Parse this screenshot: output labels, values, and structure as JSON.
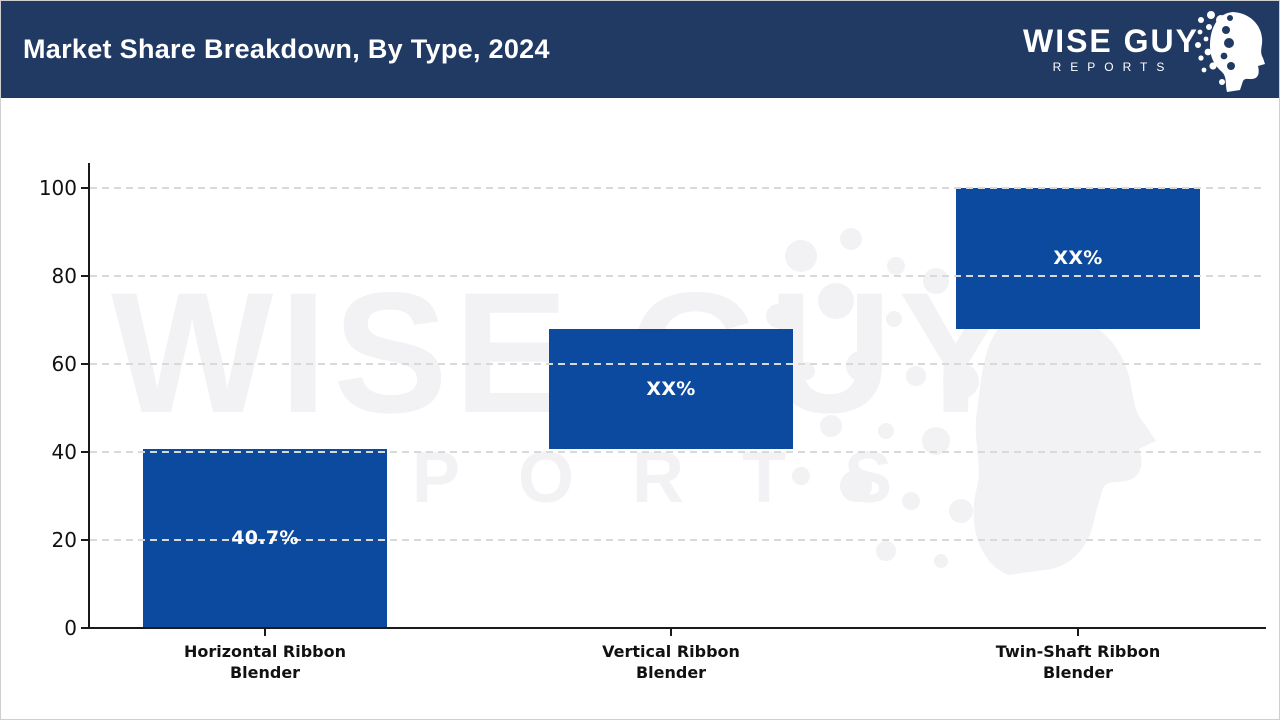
{
  "header": {
    "title": "Market Share Breakdown, By Type, 2024",
    "bg_color": "#203a64",
    "logo": {
      "line1": "WISE GUY",
      "line2": "REPORTS"
    }
  },
  "watermark": {
    "line1": "WISE GUY",
    "line2": "REPORTS"
  },
  "chart_data": {
    "type": "bar",
    "subtype": "waterfall",
    "title": "Market Share Breakdown, By Type, 2024",
    "categories": [
      {
        "line1": "Horizontal Ribbon",
        "line2": "Blender",
        "full": "Horizontal Ribbon Blender"
      },
      {
        "line1": "Vertical Ribbon",
        "line2": "Blender",
        "full": "Vertical Ribbon Blender"
      },
      {
        "line1": "Twin-Shaft Ribbon",
        "line2": "Blender",
        "full": "Twin-Shaft Ribbon Blender"
      }
    ],
    "segments": [
      {
        "category": "Horizontal Ribbon Blender",
        "start": 0,
        "end": 40.7,
        "label": "40.7%"
      },
      {
        "category": "Vertical Ribbon Blender",
        "start": 40.7,
        "end": 68,
        "label": "XX%"
      },
      {
        "category": "Twin-Shaft Ribbon Blender",
        "start": 68,
        "end": 100,
        "label": "XX%"
      }
    ],
    "ylim": [
      0,
      100
    ],
    "yticks": [
      0,
      20,
      40,
      60,
      80,
      100
    ],
    "xlabel": "",
    "ylabel": "",
    "legend": null,
    "grid": "dashed-horizontal",
    "grid_on_top_of_bars": true,
    "bar_color": "#0b4a9e",
    "bar_label_color": "#ffffff",
    "grid_color": "#d9d9d9",
    "axis_color": "#1a1a1a",
    "watermark_color": "#f2f2f5"
  }
}
